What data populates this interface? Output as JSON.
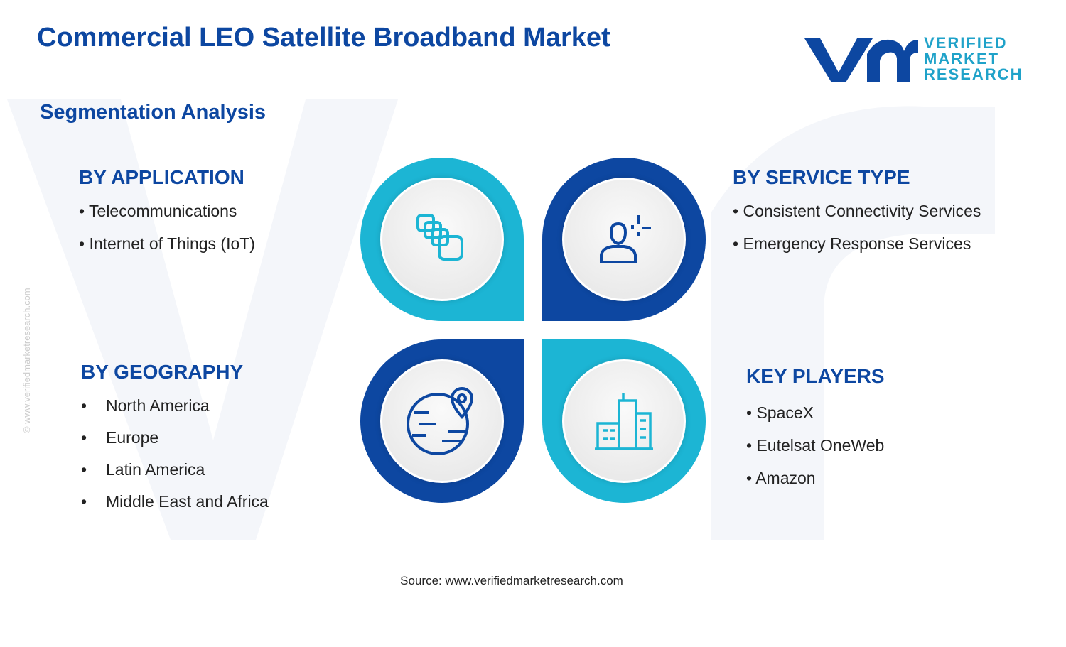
{
  "header": {
    "title": "Commercial LEO Satellite Broadband Market",
    "subtitle": "Segmentation Analysis"
  },
  "logo": {
    "lines": [
      "VERIFIED",
      "MARKET",
      "RESEARCH"
    ]
  },
  "watermark": "© www.verifiedmarketresearch.com",
  "segments": [
    {
      "title": "BY APPLICATION",
      "items": [
        "Telecommunications",
        "Internet of Things (IoT)"
      ]
    },
    {
      "title": "BY SERVICE TYPE",
      "items": [
        "Consistent Connectivity Services",
        "Emergency Response Services"
      ]
    },
    {
      "title": "BY GEOGRAPHY",
      "items": [
        "North America",
        "Europe",
        "Latin America",
        "Middle East and Africa"
      ]
    },
    {
      "title": "KEY PLAYERS",
      "items": [
        "SpaceX",
        "Eutelsat OneWeb",
        "Amazon"
      ]
    }
  ],
  "source": "Source: www.verifiedmarketresearch.com"
}
